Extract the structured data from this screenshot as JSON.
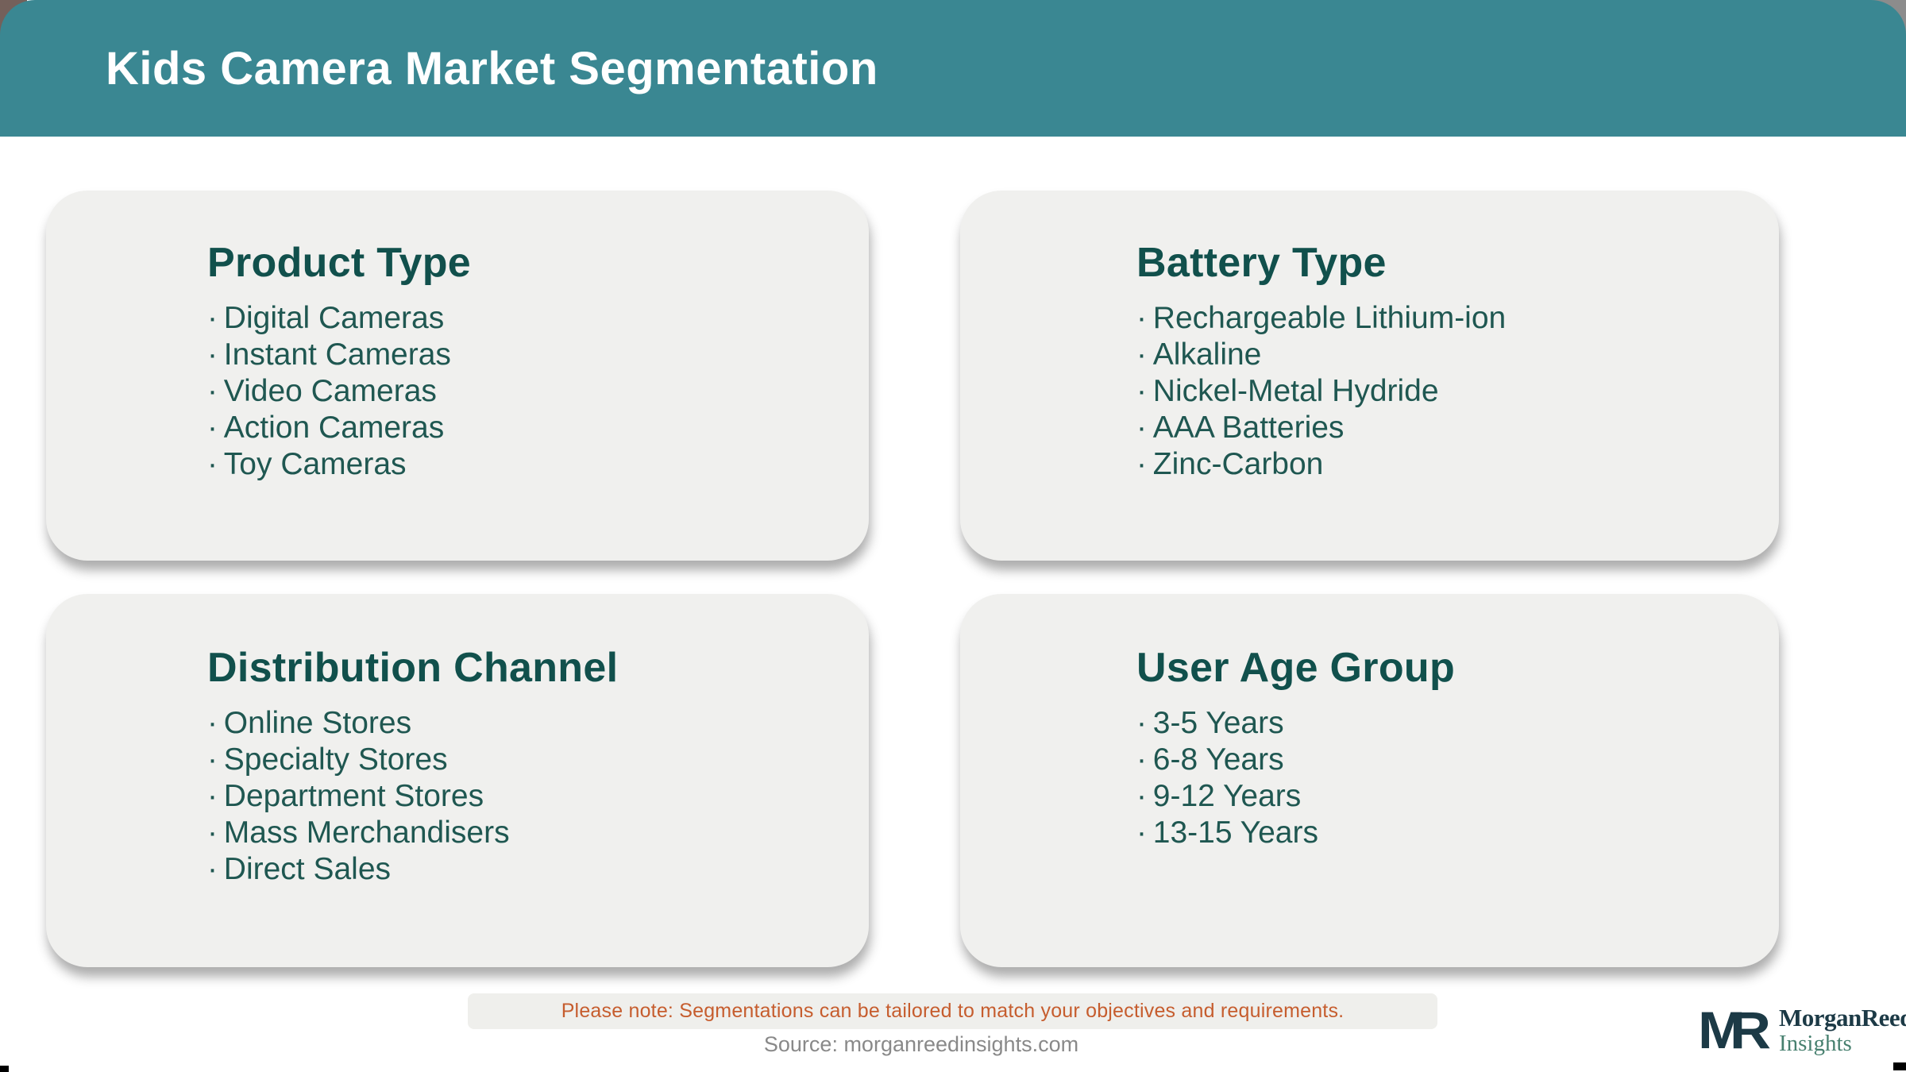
{
  "header": {
    "title": "Kids Camera Market Segmentation"
  },
  "sections": [
    {
      "title": "Product Type",
      "items": [
        "Digital Cameras",
        "Instant Cameras",
        "Video Cameras",
        "Action Cameras",
        "Toy Cameras"
      ]
    },
    {
      "title": "Battery Type",
      "items": [
        "Rechargeable Lithium-ion",
        "Alkaline",
        "Nickel-Metal Hydride",
        "AAA Batteries",
        "Zinc-Carbon"
      ]
    },
    {
      "title": "Distribution Channel",
      "items": [
        "Online Stores",
        "Specialty Stores",
        "Department Stores",
        "Mass Merchandisers",
        "Direct Sales"
      ]
    },
    {
      "title": "User Age Group",
      "items": [
        "3-5 Years",
        "6-8 Years",
        "9-12 Years",
        "13-15 Years"
      ]
    }
  ],
  "footer": {
    "note": "Please note: Segmentations can be tailored to match your objectives and requirements.",
    "source": "Source: morganreedinsights.com"
  },
  "logo": {
    "monogram": "MR",
    "name_primary": "Morgan",
    "name_secondary": "Reed",
    "subtitle": "Insights"
  },
  "colors": {
    "header_teal": "#3A8792",
    "card_background": "#F0F0EE",
    "card_heading": "#11504C",
    "card_item_text": "#1F5751",
    "note_orange": "#C65D2E",
    "source_gray": "#898989",
    "logo_navy": "#1C3A46",
    "logo_teal": "#47806F"
  }
}
